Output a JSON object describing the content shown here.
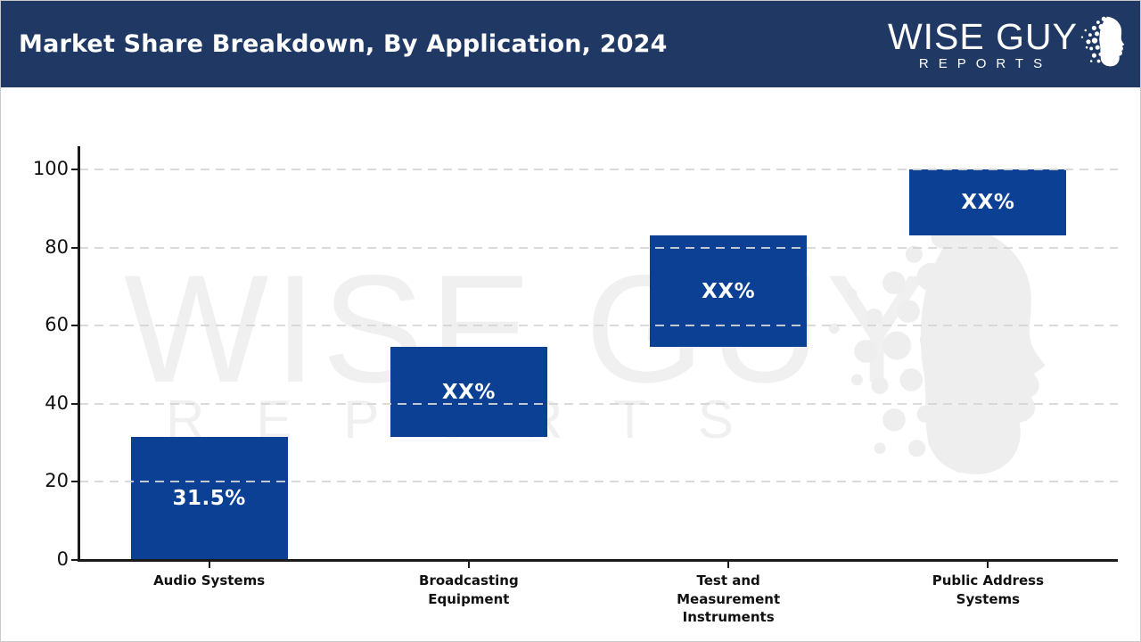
{
  "header": {
    "title": "Market Share Breakdown, By Application, 2024",
    "bg_color": "#1f3864",
    "logo": {
      "name": "WISE GUY",
      "sub": "REPORTS"
    }
  },
  "watermark": {
    "name": "WISE GUY",
    "sub": "REPORTS"
  },
  "chart_data": {
    "type": "bar",
    "subtype": "waterfall",
    "title": "Market Share Breakdown, By Application, 2024",
    "categories": [
      "Audio Systems",
      "Broadcasting\nEquipment",
      "Test and\nMeasurement\nInstruments",
      "Public Address\nSystems"
    ],
    "bars": [
      {
        "category": "Audio Systems",
        "start": 0,
        "end": 31.5,
        "label": "31.5%"
      },
      {
        "category": "Broadcasting Equipment",
        "start": 31.5,
        "end": 54.5,
        "label": "XX%"
      },
      {
        "category": "Test and Measurement Instruments",
        "start": 54.5,
        "end": 83,
        "label": "XX%"
      },
      {
        "category": "Public Address Systems",
        "start": 83,
        "end": 100,
        "label": "XX%"
      }
    ],
    "yticks": [
      0,
      20,
      40,
      60,
      80,
      100
    ],
    "ylim": [
      0,
      106
    ],
    "xlabel": "",
    "ylabel": "",
    "bar_color": "#0b4094",
    "grid": {
      "axis": "y",
      "style": "dashed",
      "color": "#d9d9d9"
    },
    "legend_position": "none"
  }
}
